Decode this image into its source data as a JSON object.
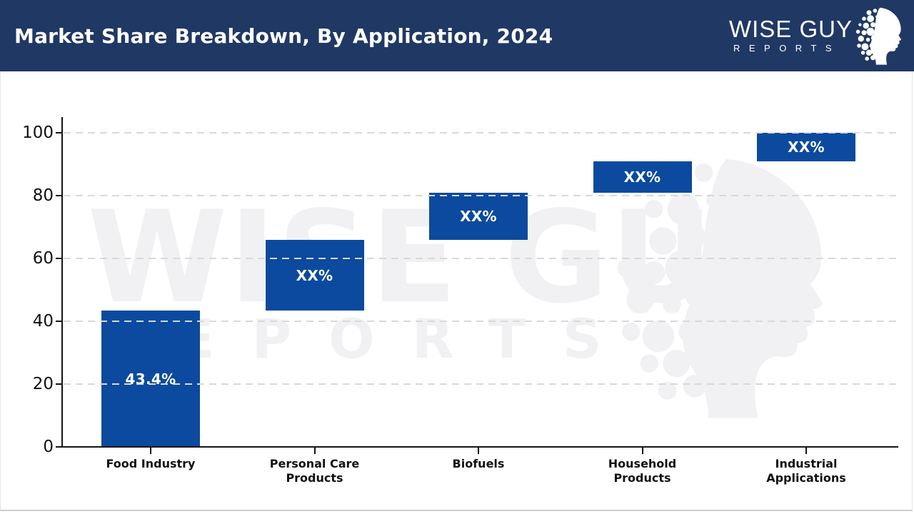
{
  "header": {
    "title": "Market Share Breakdown, By Application, 2024",
    "logo": {
      "line1": "WISE GUY",
      "line2": "REPORTS"
    }
  },
  "watermark": {
    "line1": "WISE GUY",
    "line2": "REPORTS"
  },
  "colors": {
    "header_bg": "#203864",
    "bar_fill": "#0b4a9e",
    "gridline": "#d9d9d9",
    "watermark": "#f1f1f3"
  },
  "chart_data": {
    "type": "bar",
    "subtype": "waterfall",
    "title": "Market Share Breakdown, By Application, 2024",
    "categories": [
      "Food Industry",
      "Personal Care Products",
      "Biofuels",
      "Household Products",
      "Industrial Applications"
    ],
    "bar_labels": [
      "43.4%",
      "XX%",
      "XX%",
      "XX%",
      "XX%"
    ],
    "segment_start": [
      0,
      43.4,
      65.8,
      80.8,
      90.9
    ],
    "segment_end": [
      43.4,
      65.8,
      80.8,
      90.9,
      100
    ],
    "values": [
      43.4,
      22.4,
      15.0,
      10.1,
      9.1
    ],
    "xlabel": "",
    "ylabel": "",
    "ylim": [
      0,
      100
    ],
    "yticks": [
      0,
      20,
      40,
      60,
      80,
      100
    ],
    "grid": "horizontal-dashed",
    "legend": "none"
  }
}
